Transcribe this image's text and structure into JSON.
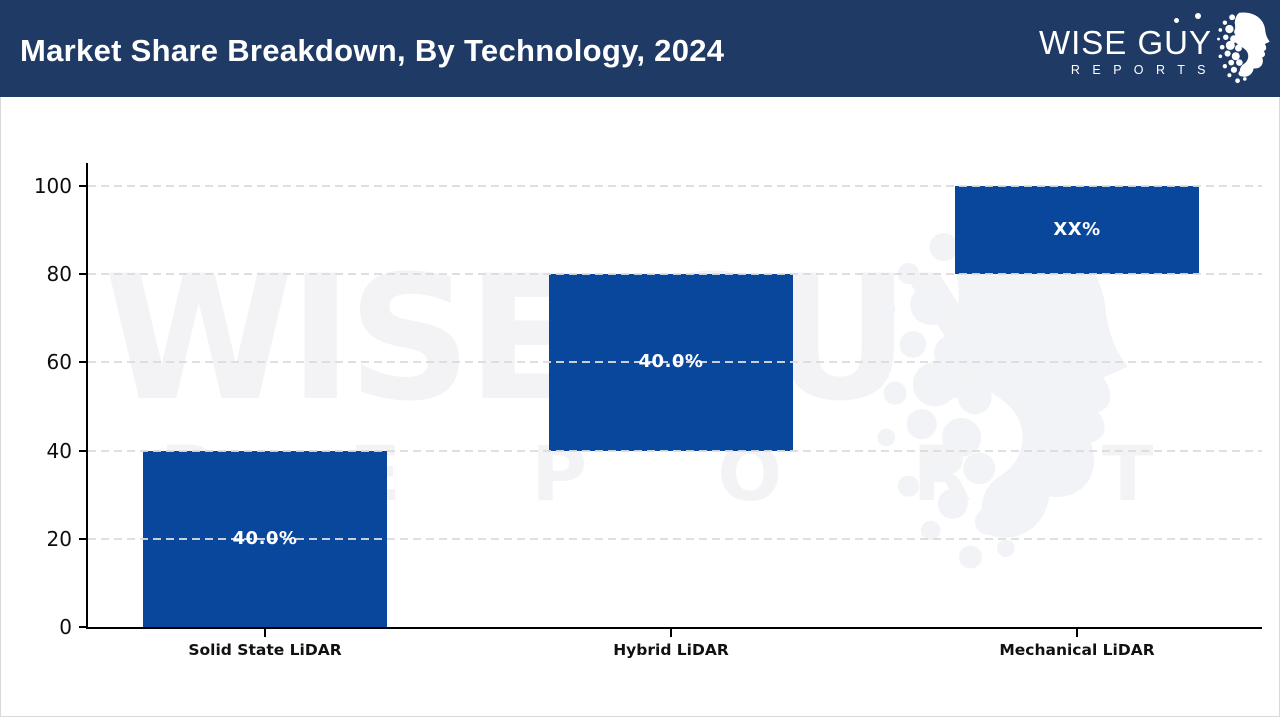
{
  "header": {
    "title": "Market Share Breakdown, By Technology, 2024",
    "bg_color": "#1f3a64",
    "logo": {
      "name_line": "WISE GUY",
      "sub_line": "R E P O R T S"
    }
  },
  "chart_data": {
    "type": "bar",
    "subtype": "waterfall",
    "title": "Market Share Breakdown, By Technology, 2024",
    "categories": [
      "Solid State LiDAR",
      "Hybrid LiDAR",
      "Mechanical LiDAR"
    ],
    "bars": [
      {
        "category": "Solid State LiDAR",
        "start": 0,
        "end": 40,
        "value": 40.0,
        "label": "40.0%"
      },
      {
        "category": "Hybrid LiDAR",
        "start": 40,
        "end": 80,
        "value": 40.0,
        "label": "40.0%"
      },
      {
        "category": "Mechanical LiDAR",
        "start": 80,
        "end": 100,
        "value": 20.0,
        "label": "XX%"
      }
    ],
    "xlabel": "",
    "ylabel": "",
    "ylim": [
      0,
      100
    ],
    "yticks": [
      0,
      20,
      40,
      60,
      80,
      100
    ],
    "grid": "horizontal-dashed",
    "grid_color": "#dcdcdc",
    "axis_color": "#000000",
    "bar_color": "#09479d",
    "label_color": "#ffffff",
    "legend": "none",
    "watermark": {
      "line1": "WISE GUY",
      "line2": "R E P O R T S"
    }
  }
}
